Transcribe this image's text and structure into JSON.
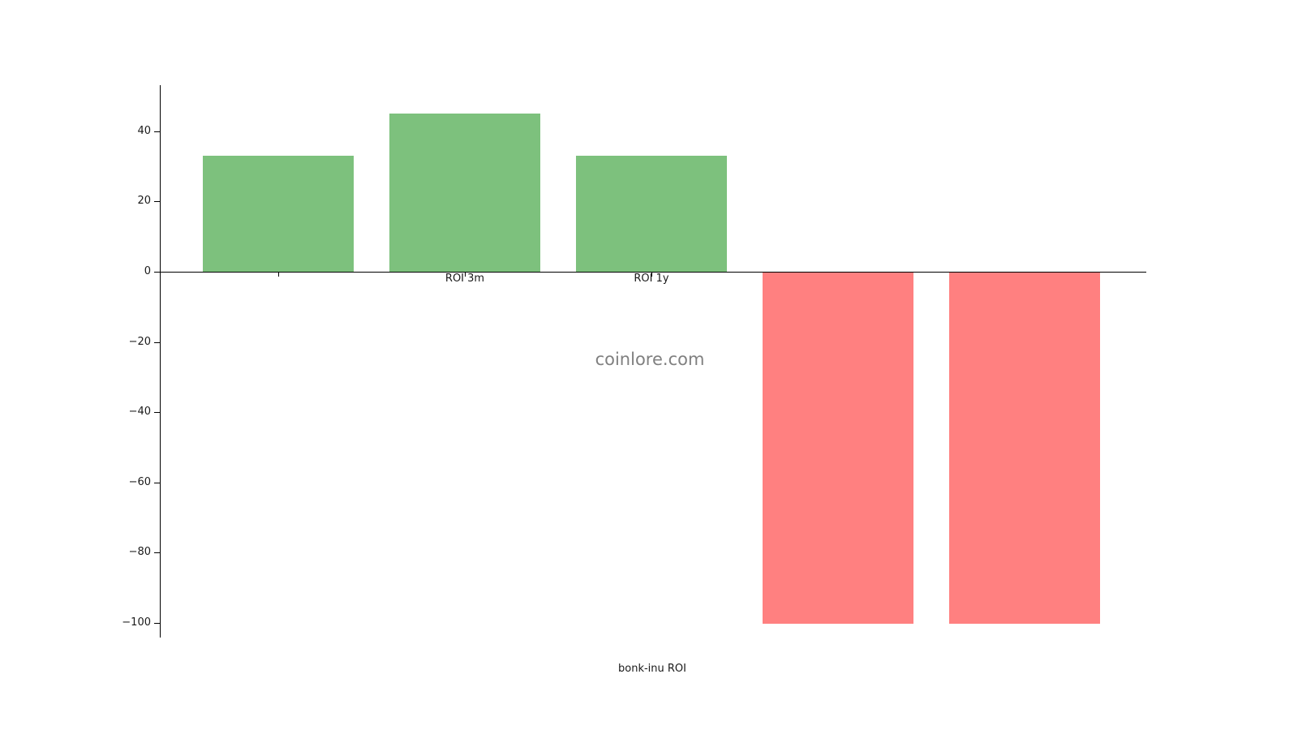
{
  "chart_data": {
    "type": "bar",
    "categories": [
      "",
      "ROI 3m",
      "ROI 1y",
      "",
      ""
    ],
    "values": [
      33,
      45,
      33,
      -100,
      -100
    ],
    "title": "",
    "xlabel": "bonk-inu ROI",
    "ylabel": "",
    "ylim": [
      -104,
      53
    ],
    "yticks": [
      40,
      20,
      0,
      -20,
      -40,
      -60,
      -80,
      -100
    ],
    "watermark": "coinlore.com",
    "colors": {
      "positive_bar": "#7dc17d",
      "negative_bar": "#ff8080",
      "axis": "#000000",
      "tick_text": "#1a1a1a",
      "watermark_text": "#808080"
    },
    "layout_hints": {
      "grid": false,
      "legend": false,
      "x_ticks_visible_count": 3,
      "bar_gap_ratio": 0.19
    }
  }
}
